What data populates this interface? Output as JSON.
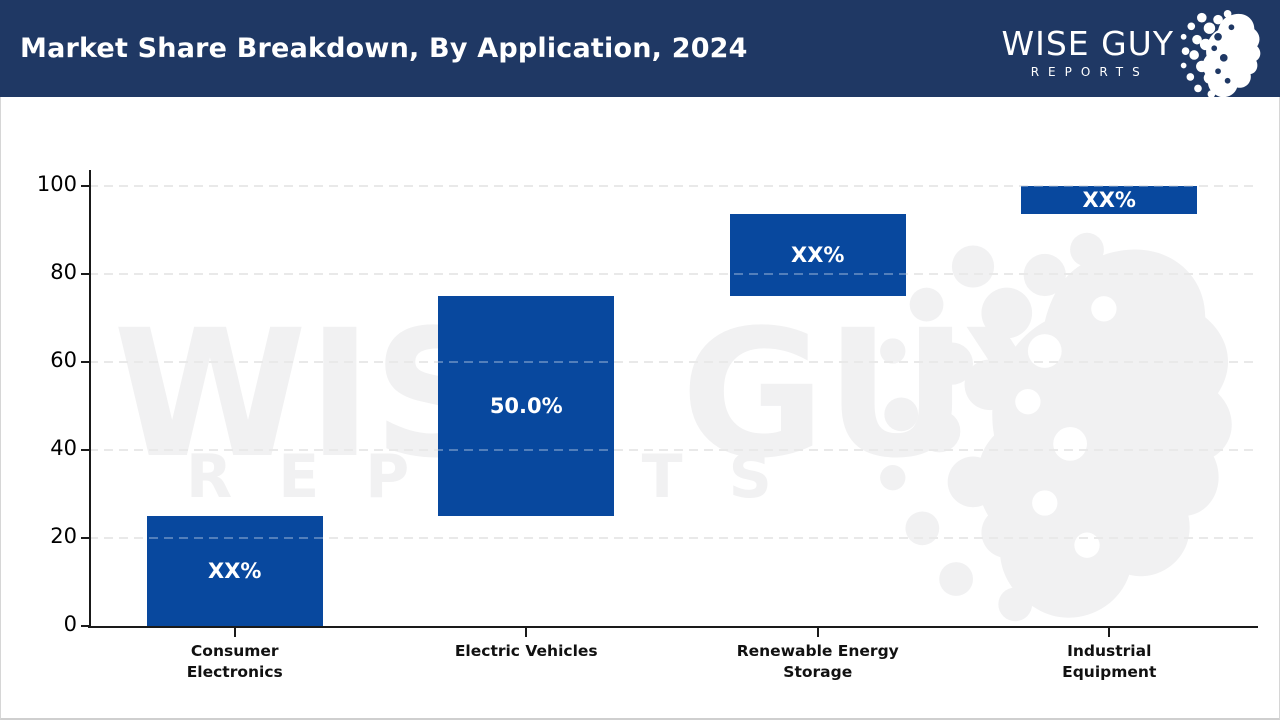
{
  "header": {
    "title": "Market Share Breakdown, By Application, 2024",
    "logo": {
      "brand": "WISE GUY",
      "sub": "REPORTS"
    }
  },
  "watermark": {
    "line1": "WISE GUY",
    "line2": "REPORTS"
  },
  "colors": {
    "header_bg": "#1f3864",
    "bar": "#08489e",
    "grid": "#e0e0e0",
    "axis": "#1a1a1a",
    "bar_label": "#ffffff",
    "watermark": "#f1f1f2"
  },
  "chart_data": {
    "type": "bar",
    "subtype": "waterfall",
    "title": "Market Share Breakdown, By Application, 2024",
    "categories": [
      "Consumer Electronics",
      "Electric Vehicles",
      "Renewable Energy Storage",
      "Industrial Equipment"
    ],
    "category_lines": [
      [
        "Consumer",
        "Electronics"
      ],
      [
        "Electric Vehicles"
      ],
      [
        "Renewable Energy",
        "Storage"
      ],
      [
        "Industrial",
        "Equipment"
      ]
    ],
    "segments": [
      {
        "category": "Consumer Electronics",
        "start": 0,
        "end": 25,
        "label": "XX%"
      },
      {
        "category": "Electric Vehicles",
        "start": 25,
        "end": 75,
        "label": "50.0%"
      },
      {
        "category": "Renewable Energy Storage",
        "start": 75,
        "end": 93.75,
        "label": "XX%"
      },
      {
        "category": "Industrial Equipment",
        "start": 93.75,
        "end": 100,
        "label": "XX%"
      }
    ],
    "yticks": [
      0,
      20,
      40,
      60,
      80,
      100
    ],
    "ylim": [
      0,
      100
    ],
    "grid": "horizontal-dashed",
    "legend": null
  }
}
